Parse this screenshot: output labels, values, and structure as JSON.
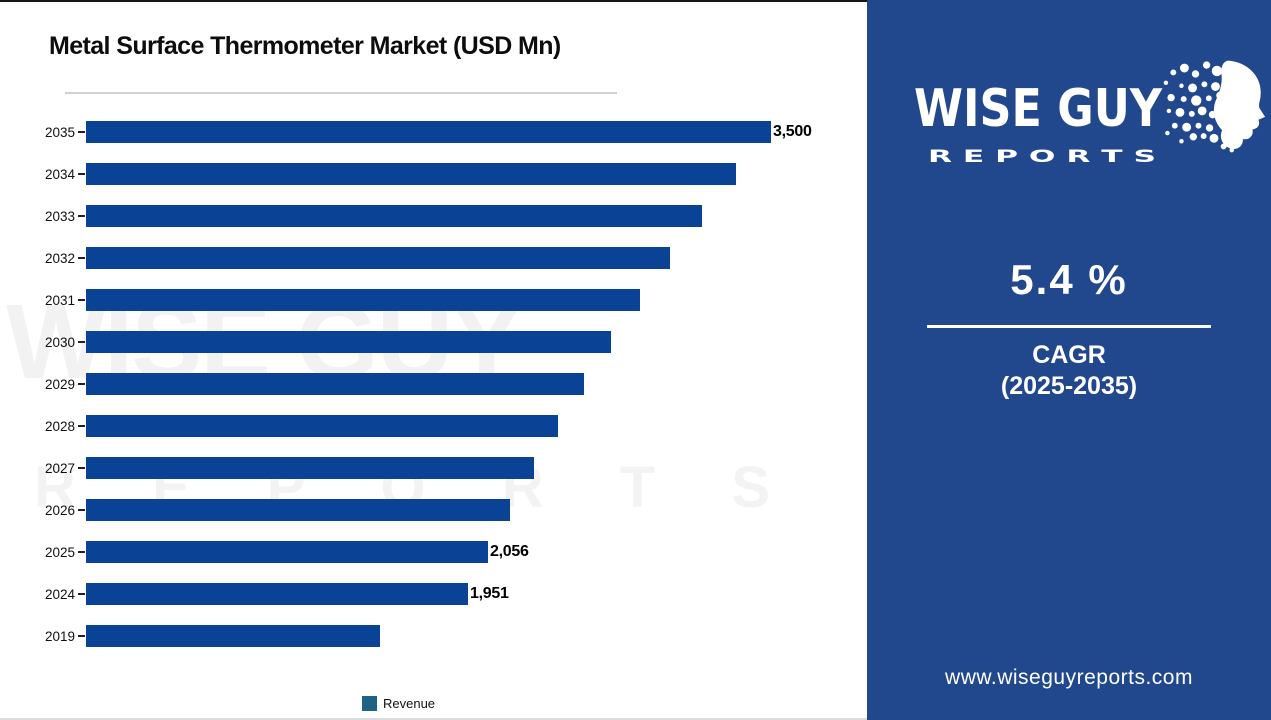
{
  "title": "Metal Surface Thermometer Market (USD Mn)",
  "chart_data": {
    "type": "bar",
    "orientation": "horizontal",
    "title": "Metal Surface Thermometer Market (USD Mn)",
    "unit": "USD Mn",
    "categories": [
      "2035",
      "2034",
      "2033",
      "2032",
      "2031",
      "2030",
      "2029",
      "2028",
      "2027",
      "2026",
      "2025",
      "2024",
      "2019"
    ],
    "values": [
      3500,
      3319,
      3148,
      2984,
      2830,
      2683,
      2544,
      2412,
      2287,
      2168,
      2056,
      1951,
      1500
    ],
    "value_labels": [
      "3,500",
      "",
      "",
      "",
      "",
      "",
      "",
      "",
      "",
      "",
      "2,056",
      "1,951",
      ""
    ],
    "xlim": [
      0,
      3500
    ],
    "grid": false,
    "bar_color": "#0a4296",
    "legend": {
      "label": "Revenue",
      "swatch_color": "#1e6285",
      "position": "bottom"
    }
  },
  "watermark": {
    "line1": "WISE GUY",
    "line2": "R E P O R T S"
  },
  "brand_panel": {
    "background": "#21478d",
    "logo_line1": "WISE GUY",
    "logo_line2": "R E P O R T S",
    "cagr_value": "5.4 %",
    "cagr_line1": "CAGR",
    "cagr_line2": "(2025-2035)",
    "website": "www.wiseguyreports.com"
  }
}
